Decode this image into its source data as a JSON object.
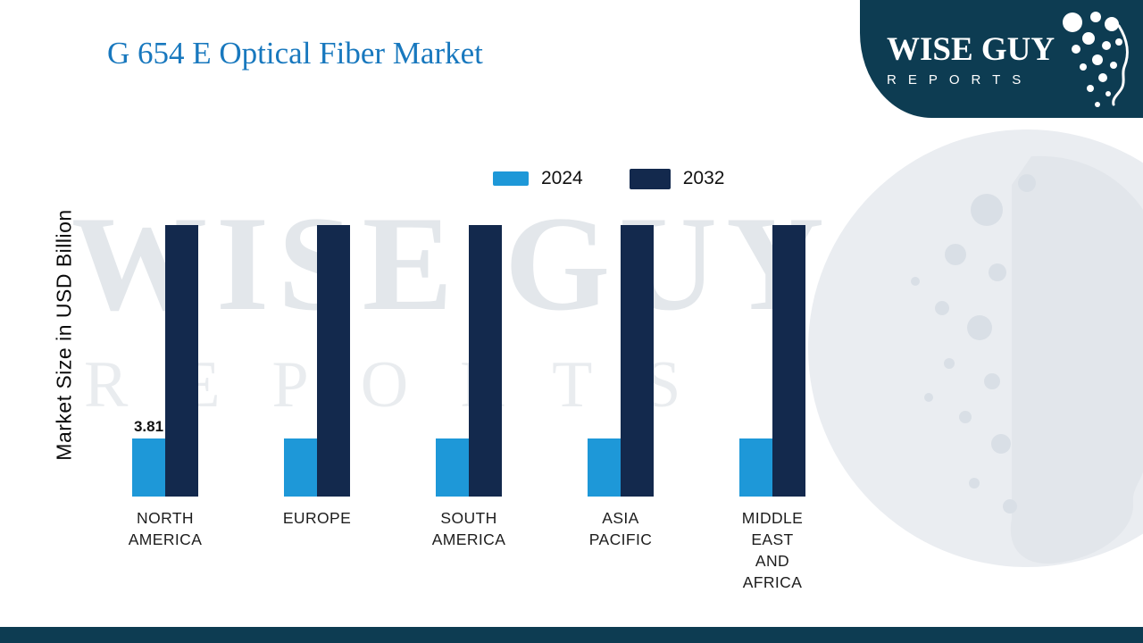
{
  "page": {
    "title": "G 654 E Optical Fiber Market"
  },
  "logo": {
    "brand": "WISE GUY",
    "sub": "REPORTS"
  },
  "watermark": {
    "line1": "WISE GUY",
    "line2": "REPORTS"
  },
  "colors": {
    "title_blue": "#1878be",
    "bar_2024": "#1e98d8",
    "bar_2032": "#13294d",
    "dark_band": "#0d3c52",
    "circle_gray": "#eaedf1",
    "watermark_gray": "#e3e7eb"
  },
  "chart_data": {
    "type": "bar",
    "title": "G 654 E Optical Fiber Market",
    "xlabel": "",
    "ylabel": "Market Size in USD Billion",
    "categories": [
      "NORTH AMERICA",
      "EUROPE",
      "SOUTH AMERICA",
      "ASIA PACIFIC",
      "MIDDLE EAST AND AFRICA"
    ],
    "category_labels": [
      "NORTH\nAMERICA",
      "EUROPE",
      "SOUTH\nAMERICA",
      "ASIA\nPACIFIC",
      "MIDDLE\nEAST\nAND\nAFRICA"
    ],
    "series": [
      {
        "name": "2024",
        "color": "#1e98d8",
        "values": [
          3.81,
          3.81,
          3.81,
          3.81,
          3.81
        ]
      },
      {
        "name": "2032",
        "color": "#13294d",
        "values": [
          17.9,
          17.9,
          17.9,
          17.9,
          17.9
        ],
        "estimated_from_bar_height": true
      }
    ],
    "data_labels": [
      {
        "series": "2024",
        "category_index": 0,
        "text": "3.81"
      }
    ],
    "legend_position": "top-center",
    "grid": false,
    "ylim": [
      0,
      19
    ]
  }
}
